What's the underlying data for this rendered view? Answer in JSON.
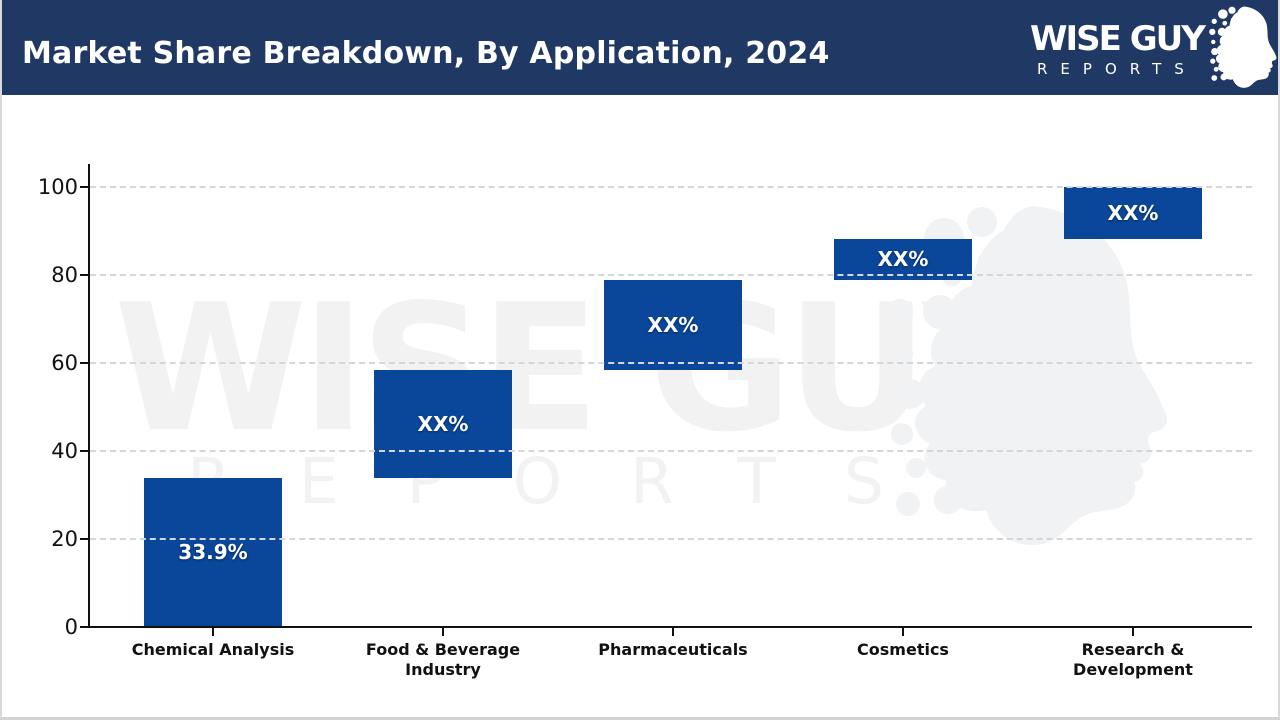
{
  "header": {
    "title": "Market Share Breakdown, By Application, 2024",
    "logo": {
      "line1": "WISE GUY",
      "line2": "REPORTS"
    }
  },
  "watermark": {
    "line1": "WISE GUY",
    "line2": "REPORTS"
  },
  "colors": {
    "header_bg": "#1f3864",
    "bar": "#0a4699",
    "bar_label": "#ffffff",
    "axis": "#111111",
    "gridline": "#d4d6da",
    "watermark": "#f2f2f3"
  },
  "chart_data": {
    "type": "bar",
    "subtype": "floating-waterfall",
    "title": "Market Share Breakdown, By Application, 2024",
    "categories": [
      "Chemical Analysis",
      "Food & Beverage Industry",
      "Pharmaceuticals",
      "Cosmetics",
      "Research & Development"
    ],
    "bars": [
      {
        "category": "Chemical Analysis",
        "label": "33.9%",
        "start": 0,
        "end": 33.9
      },
      {
        "category": "Food & Beverage Industry",
        "label": "XX%",
        "start": 33.9,
        "end": 58.4
      },
      {
        "category": "Pharmaceuticals",
        "label": "XX%",
        "start": 58.4,
        "end": 78.9
      },
      {
        "category": "Cosmetics",
        "label": "XX%",
        "start": 78.9,
        "end": 88.2
      },
      {
        "category": "Research & Development",
        "label": "XX%",
        "start": 88.2,
        "end": 100
      }
    ],
    "ylim": [
      0,
      100
    ],
    "yticks": [
      0,
      20,
      40,
      60,
      80,
      100
    ],
    "xlabel": "",
    "ylabel": "",
    "grid": "horizontal-dashed",
    "legend": "none"
  }
}
